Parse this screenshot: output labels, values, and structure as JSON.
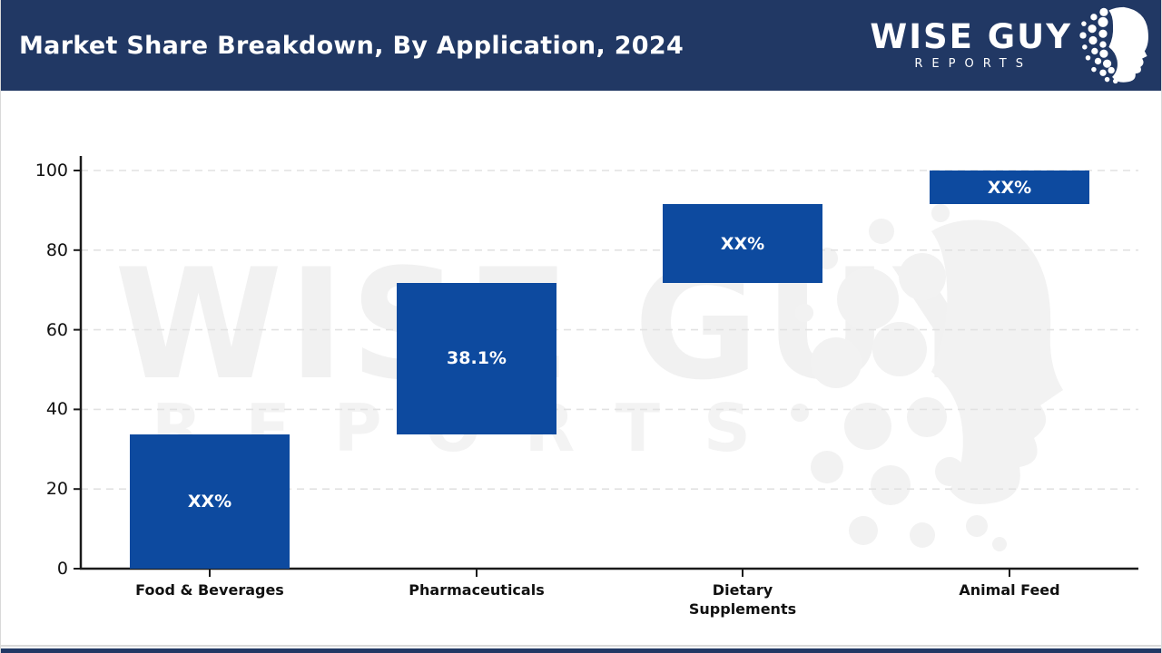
{
  "header": {
    "title": "Market Share Breakdown, By Application, 2024",
    "logo": {
      "line1": "WISE GUY",
      "line2": "REPORTS"
    }
  },
  "watermark": {
    "line1": "WISE GUY",
    "line2": "REPORTS"
  },
  "chart_data": {
    "type": "bar",
    "subtype": "waterfall",
    "title": "Market Share Breakdown, By Application, 2024",
    "categories": [
      "Food & Beverages",
      "Pharmaceuticals",
      "Dietary Supplements",
      "Animal Feed"
    ],
    "category_label_lines": [
      [
        "Food & Beverages"
      ],
      [
        "Pharmaceuticals"
      ],
      [
        "Dietary",
        "Supplements"
      ],
      [
        "Animal Feed"
      ]
    ],
    "values": [
      33.7,
      38.1,
      19.7,
      8.5
    ],
    "segments": [
      {
        "category": "Food & Beverages",
        "start": 0,
        "end": 33.7,
        "label": "XX%"
      },
      {
        "category": "Pharmaceuticals",
        "start": 33.7,
        "end": 71.8,
        "label": "38.1%"
      },
      {
        "category": "Dietary Supplements",
        "start": 71.8,
        "end": 91.5,
        "label": "XX%"
      },
      {
        "category": "Animal Feed",
        "start": 91.5,
        "end": 100,
        "label": "XX%"
      }
    ],
    "ylim": [
      0,
      100
    ],
    "yticks": [
      0,
      20,
      40,
      60,
      80,
      100
    ],
    "xlabel": "",
    "ylabel": "",
    "grid": "horizontal-dashed",
    "legend": "none"
  },
  "colors": {
    "header_bg": "#213864",
    "footer_bg": "#213864",
    "bar": "#0d4a9f",
    "bar_label": "#ffffff",
    "axis": "#1a1a1a",
    "grid": "#e2e2e2",
    "watermark": "#f1f1f1",
    "page_border": "#d9d9d9"
  }
}
